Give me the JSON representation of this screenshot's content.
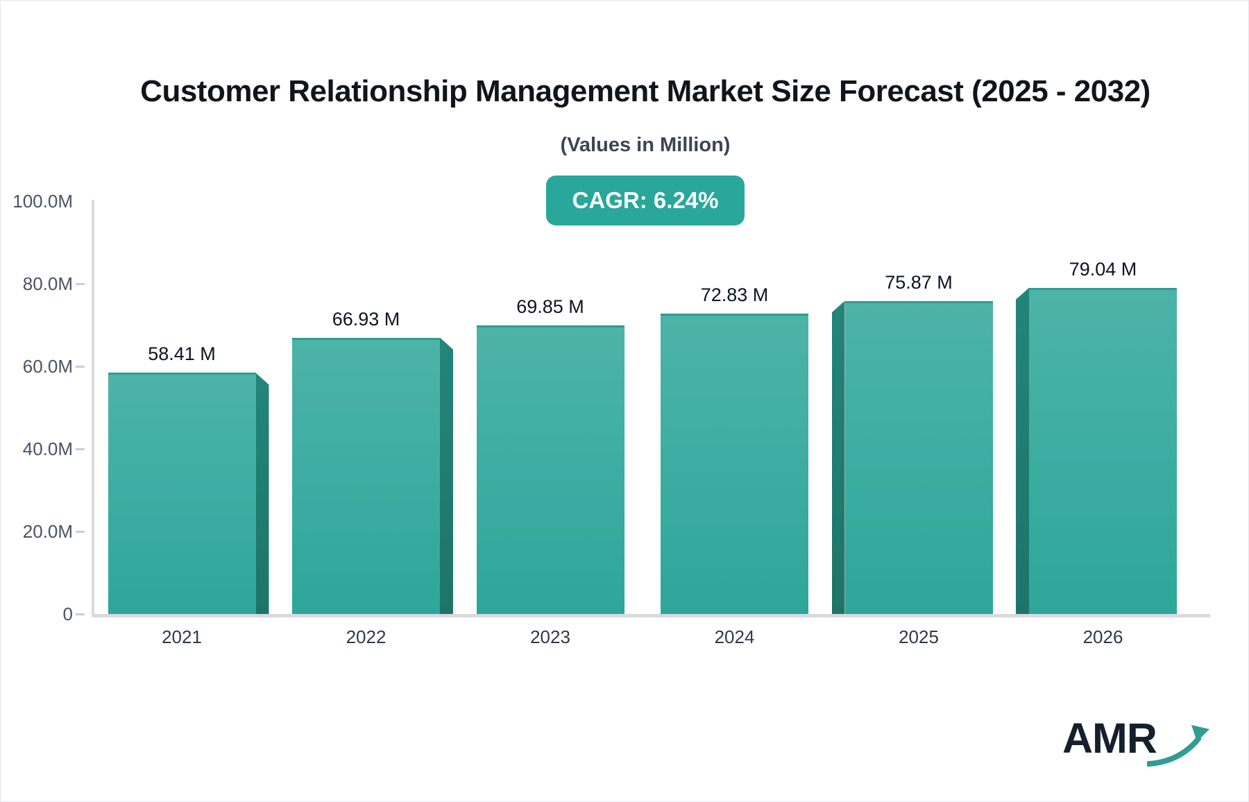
{
  "header": {
    "title": "Customer Relationship Management Market Size Forecast (2025 - 2032)",
    "subtitle": "(Values in Million)",
    "cagr_badge": "CAGR: 6.24%"
  },
  "chart_data": {
    "type": "bar",
    "title": "Customer Relationship Management Market Size Forecast (2025 - 2032)",
    "subtitle": "(Values in Million)",
    "unit": "Million",
    "cagr": "6.24%",
    "categories": [
      "2021",
      "2022",
      "2023",
      "2024",
      "2025",
      "2026"
    ],
    "values": [
      58.41,
      66.93,
      69.85,
      72.83,
      75.87,
      79.04
    ],
    "value_labels": [
      "58.41 M",
      "66.93 M",
      "69.85 M",
      "72.83 M",
      "75.87 M",
      "79.04 M"
    ],
    "ylim": [
      0,
      100
    ],
    "y_ticks": [
      {
        "value": 0,
        "label": "0"
      },
      {
        "value": 20,
        "label": "20.0M"
      },
      {
        "value": 40,
        "label": "40.0M"
      },
      {
        "value": 60,
        "label": "60.0M"
      },
      {
        "value": 80,
        "label": "80.0M"
      },
      {
        "value": 100,
        "label": "100.0M"
      }
    ],
    "grid": false,
    "legend": false,
    "colors": {
      "bar_top": "#4db3a9",
      "bar_bottom": "#2ea69a",
      "bar_side": "#20796e",
      "accent": "#2aa79b",
      "axis_line": "#d8dade"
    }
  },
  "logo": {
    "text": "AMR"
  }
}
